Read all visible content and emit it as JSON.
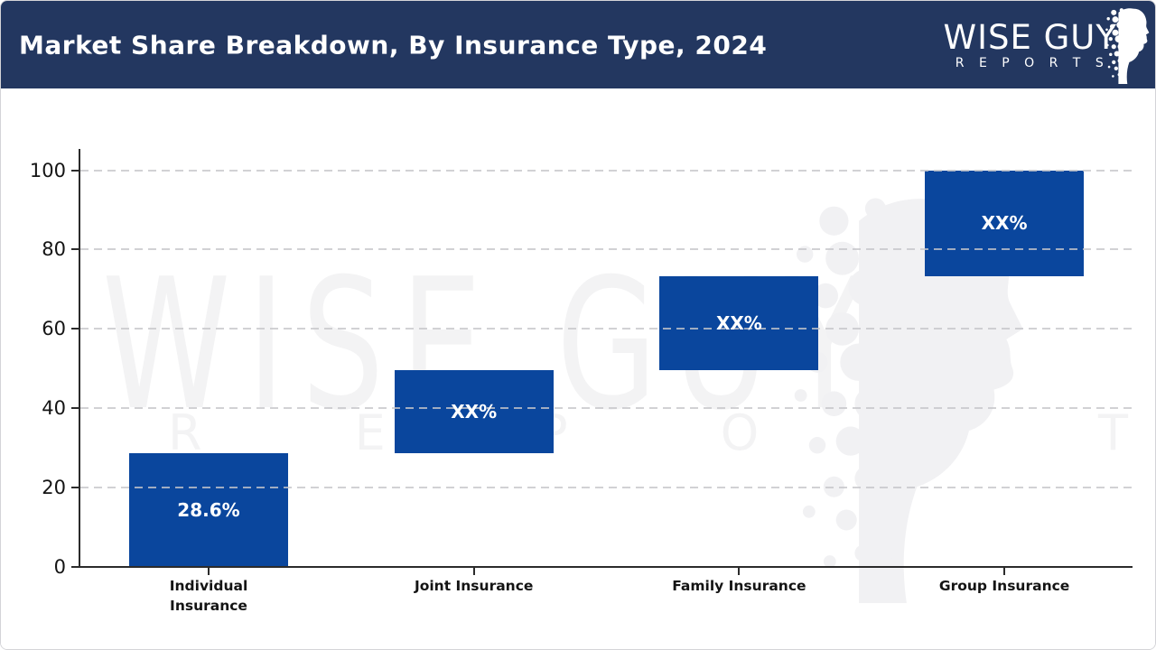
{
  "header": {
    "title": "Market Share Breakdown, By Insurance Type, 2024",
    "logo": {
      "line1": "WISE GUY",
      "line2": "R E P O R T S"
    }
  },
  "watermark": {
    "line1": "WISE GUY",
    "line2": "R E P O R T S"
  },
  "colors": {
    "header_bg": "#233760",
    "bar": "#0A469D",
    "grid_dash": "#c8c8cc",
    "axis": "#2b2b2b",
    "tick_text": "#141414",
    "bar_label_text": "#ffffff",
    "watermark": "#f3f3f4"
  },
  "chart_data": {
    "type": "bar",
    "subtype": "waterfall",
    "title": "Market Share Breakdown, By Insurance Type, 2024",
    "categories": [
      "Individual Insurance",
      "Joint Insurance",
      "Family Insurance",
      "Group Insurance"
    ],
    "segments": [
      {
        "category": "Individual Insurance",
        "start": 0,
        "end": 28.6,
        "label": "28.6%"
      },
      {
        "category": "Joint Insurance",
        "start": 28.6,
        "end": 49.7,
        "label": "XX%"
      },
      {
        "category": "Family Insurance",
        "start": 49.7,
        "end": 73.3,
        "label": "XX%"
      },
      {
        "category": "Group Insurance",
        "start": 73.3,
        "end": 100,
        "label": "XX%"
      }
    ],
    "yticks": [
      0,
      20,
      40,
      60,
      80,
      100
    ],
    "ylim": [
      0,
      105
    ],
    "xlabel": "",
    "ylabel": "",
    "grid": "horizontal-dashed",
    "legend": "none"
  }
}
